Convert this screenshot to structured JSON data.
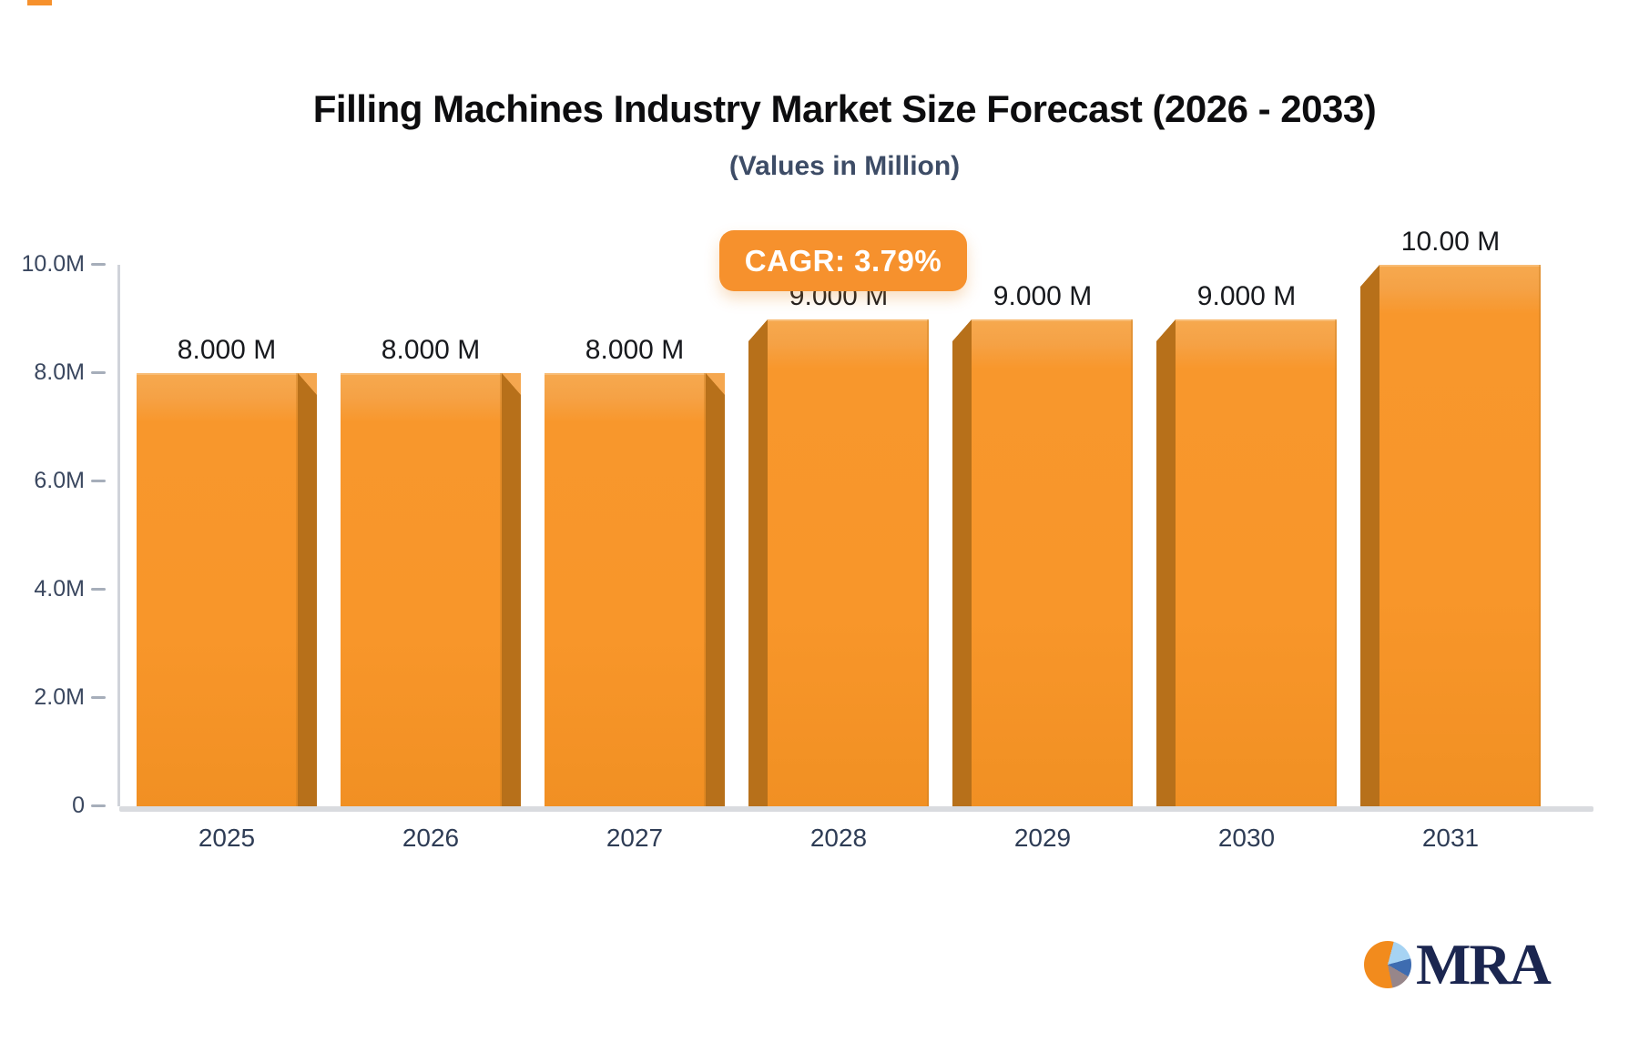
{
  "chart_data": {
    "type": "bar",
    "title": "Filling Machines Industry Market Size Forecast (2026 - 2033)",
    "subtitle": "(Values in Million)",
    "cagr_label": "CAGR: 3.79%",
    "cagr": "3.79%",
    "unit": "Million",
    "categories": [
      "2025",
      "2026",
      "2027",
      "2028",
      "2029",
      "2030",
      "2031"
    ],
    "values": [
      8,
      8,
      8,
      9,
      9,
      9,
      10
    ],
    "value_labels": [
      "8.000 M",
      "8.000 M",
      "8.000 M",
      "9.000 M",
      "9.000 M",
      "9.000 M",
      "10.00 M"
    ],
    "ylim": [
      0,
      10
    ],
    "yticks": [
      {
        "label": "0",
        "value": 0
      },
      {
        "label": "2.0M",
        "value": 2
      },
      {
        "label": "4.0M",
        "value": 4
      },
      {
        "label": "6.0M",
        "value": 6
      },
      {
        "label": "8.0M",
        "value": 8
      },
      {
        "label": "10.0M",
        "value": 10
      }
    ],
    "grid": false,
    "legend": "none",
    "bar_color": "#f8962a",
    "bar_cap_color": "#f5a74f",
    "bar_bevel_color": "#b7701a",
    "badge_color": "#f6912d",
    "bevel_side": [
      "right",
      "right",
      "right",
      "left",
      "left",
      "left",
      "left"
    ]
  },
  "logo": {
    "text": "MRA",
    "text_color": "#1b2650",
    "pie_colors": [
      "#f28b1d",
      "#a6d3f3",
      "#3e6cb0",
      "#97868a"
    ]
  }
}
